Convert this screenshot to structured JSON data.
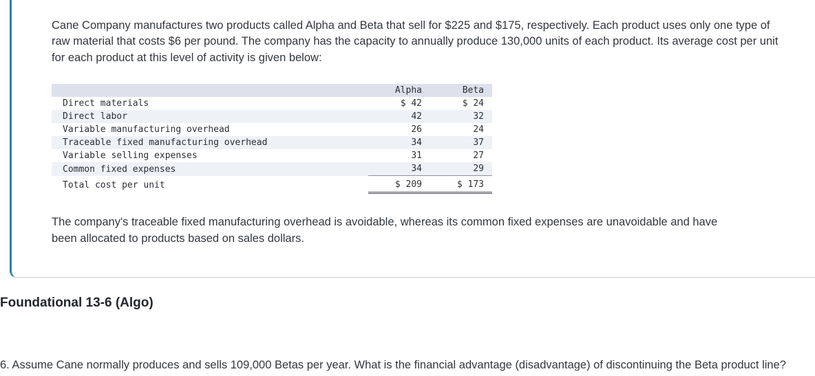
{
  "colors": {
    "card_accent": "#2b7fa7",
    "table_header_bg": "#dce1eb",
    "row_stripe": "#eef1f6"
  },
  "panel": {
    "intro": "Cane Company manufactures two products called Alpha and Beta that sell for $225 and $175, respectively. Each product uses only one type of raw material that costs $6 per pound. The company has the capacity to annually produce 130,000 units of each product. Its average cost per unit for each product at this level of activity is given below:",
    "table": {
      "col_headers": [
        "Alpha",
        "Beta"
      ],
      "rows": [
        {
          "label": "Direct materials",
          "alpha": "$ 42",
          "beta": "$ 24"
        },
        {
          "label": "Direct labor",
          "alpha": "42",
          "beta": "32"
        },
        {
          "label": "Variable manufacturing overhead",
          "alpha": "26",
          "beta": "24"
        },
        {
          "label": "Traceable fixed manufacturing overhead",
          "alpha": "34",
          "beta": "37"
        },
        {
          "label": "Variable selling expenses",
          "alpha": "31",
          "beta": "27"
        },
        {
          "label": "Common fixed expenses",
          "alpha": "34",
          "beta": "29"
        }
      ],
      "total": {
        "label": "Total cost per unit",
        "alpha": "$ 209",
        "beta": "$ 173"
      }
    },
    "note": "The company's traceable fixed manufacturing overhead is avoidable, whereas its common fixed expenses are unavoidable and have been allocated to products based on sales dollars."
  },
  "heading": "Foundational 13-6 (Algo)",
  "question": "6. Assume Cane normally produces and sells 109,000 Betas per year. What is the financial advantage (disadvantage) of discontinuing the Beta product line?"
}
